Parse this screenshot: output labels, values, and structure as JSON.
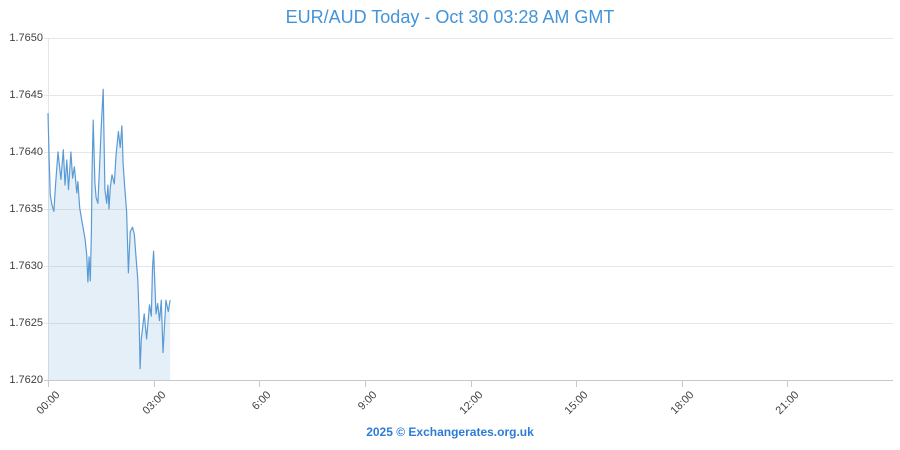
{
  "header": {
    "title": "EUR/AUD Today - Oct 30 03:28 AM GMT"
  },
  "footer": {
    "copyright": "2025 © Exchangerates.org.uk"
  },
  "colors": {
    "title_text": "#4394d9",
    "footer_text": "#2c7cd6",
    "line": "#5b9bd5",
    "area_fill": "rgba(91,155,213,0.16)",
    "grid": "#e6e6e6",
    "axis": "#c8c8c8",
    "tick_label": "#404040",
    "background": "#ffffff"
  },
  "chart_data": {
    "type": "area",
    "title": "EUR/AUD Today - Oct 30 03:28 AM GMT",
    "xlabel": "",
    "ylabel": "",
    "legend": "none",
    "grid": "horizontal-only",
    "x_unit": "minutes since 00:00 GMT",
    "xlim_minutes": [
      0,
      1440
    ],
    "ylim": [
      1.762,
      1.765
    ],
    "y_ticks": [
      "1.7650",
      "1.7645",
      "1.7640",
      "1.7635",
      "1.7630",
      "1.7625",
      "1.7620"
    ],
    "x_ticks": [
      {
        "minute": 0,
        "label": "00:00"
      },
      {
        "minute": 180,
        "label": "03:00"
      },
      {
        "minute": 360,
        "label": "6:00"
      },
      {
        "minute": 540,
        "label": "9:00"
      },
      {
        "minute": 720,
        "label": "12:00"
      },
      {
        "minute": 900,
        "label": "15:00"
      },
      {
        "minute": 1080,
        "label": "18:00"
      },
      {
        "minute": 1260,
        "label": "21:00"
      }
    ],
    "series": [
      {
        "name": "EUR/AUD",
        "points": [
          [
            0,
            1.76434
          ],
          [
            2,
            1.76392
          ],
          [
            4,
            1.76362
          ],
          [
            7,
            1.76353
          ],
          [
            10,
            1.76348
          ],
          [
            13,
            1.76372
          ],
          [
            17,
            1.764
          ],
          [
            22,
            1.76376
          ],
          [
            26,
            1.76402
          ],
          [
            29,
            1.76371
          ],
          [
            32,
            1.76393
          ],
          [
            35,
            1.76367
          ],
          [
            39,
            1.764
          ],
          [
            42,
            1.76377
          ],
          [
            45,
            1.76387
          ],
          [
            49,
            1.76364
          ],
          [
            51,
            1.76374
          ],
          [
            54,
            1.76351
          ],
          [
            57,
            1.76342
          ],
          [
            60,
            1.76333
          ],
          [
            63,
            1.76324
          ],
          [
            66,
            1.7631
          ],
          [
            68,
            1.76286
          ],
          [
            70,
            1.76308
          ],
          [
            72,
            1.76287
          ],
          [
            74,
            1.7633
          ],
          [
            75,
            1.7638
          ],
          [
            77,
            1.76428
          ],
          [
            80,
            1.76373
          ],
          [
            82,
            1.7636
          ],
          [
            85,
            1.76355
          ],
          [
            88,
            1.76388
          ],
          [
            91,
            1.76425
          ],
          [
            94,
            1.76455
          ],
          [
            97,
            1.76367
          ],
          [
            100,
            1.76355
          ],
          [
            102,
            1.76371
          ],
          [
            104,
            1.7635
          ],
          [
            106,
            1.76368
          ],
          [
            109,
            1.7638
          ],
          [
            113,
            1.76372
          ],
          [
            116,
            1.76398
          ],
          [
            120,
            1.76418
          ],
          [
            123,
            1.76404
          ],
          [
            126,
            1.76423
          ],
          [
            128,
            1.7639
          ],
          [
            131,
            1.76367
          ],
          [
            134,
            1.76348
          ],
          [
            137,
            1.76294
          ],
          [
            140,
            1.7633
          ],
          [
            144,
            1.76334
          ],
          [
            147,
            1.76328
          ],
          [
            150,
            1.76308
          ],
          [
            153,
            1.76288
          ],
          [
            155,
            1.76258
          ],
          [
            157,
            1.7621
          ],
          [
            159,
            1.76236
          ],
          [
            164,
            1.76258
          ],
          [
            168,
            1.76236
          ],
          [
            173,
            1.76266
          ],
          [
            176,
            1.76256
          ],
          [
            178,
            1.76298
          ],
          [
            180,
            1.76313
          ],
          [
            184,
            1.76258
          ],
          [
            187,
            1.76267
          ],
          [
            190,
            1.76252
          ],
          [
            193,
            1.7627
          ],
          [
            196,
            1.76224
          ],
          [
            201,
            1.7627
          ],
          [
            205,
            1.7626
          ],
          [
            208,
            1.7627
          ]
        ]
      }
    ]
  }
}
